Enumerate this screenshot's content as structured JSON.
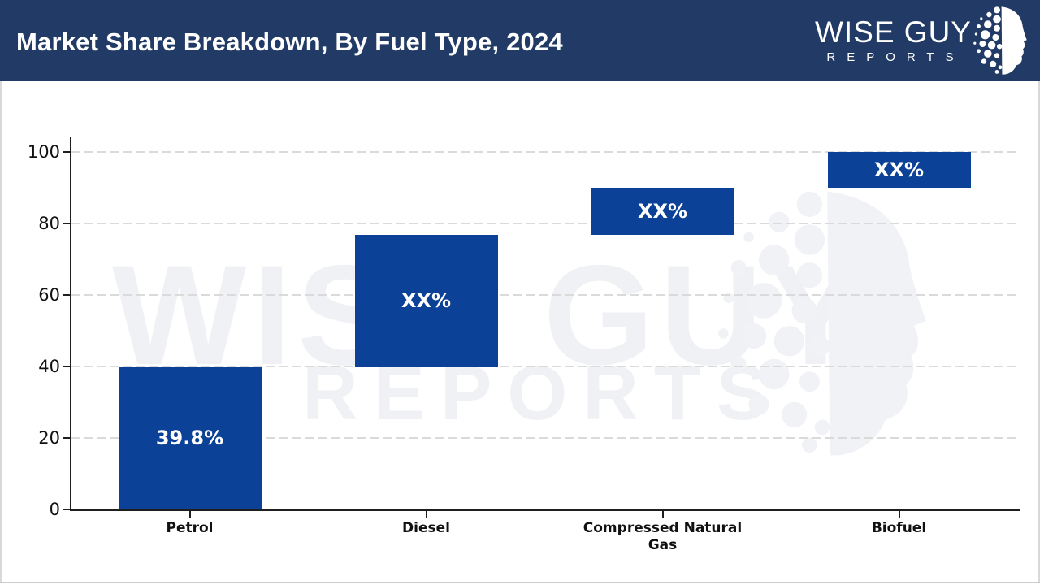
{
  "header": {
    "title": "Market Share Breakdown, By Fuel Type, 2024",
    "background_color": "#213a66",
    "logo": {
      "line1": "WISE GUY",
      "line2": "REPORTS"
    }
  },
  "watermark": {
    "line1": "WISE GUY",
    "line2": "REPORTS"
  },
  "chart_data": {
    "type": "bar",
    "subtype": "waterfall-stacked-segments",
    "title": "Market Share Breakdown, By Fuel Type, 2024",
    "categories": [
      "Petrol",
      "Diesel",
      "Compressed Natural Gas",
      "Biofuel"
    ],
    "segments": [
      {
        "label": "Petrol",
        "start": 0,
        "end": 39.8,
        "value_label": "39.8%"
      },
      {
        "label": "Diesel",
        "start": 39.8,
        "end": 76.8,
        "value_label": "XX%"
      },
      {
        "label": "Compressed Natural Gas",
        "start": 76.8,
        "end": 90,
        "value_label": "XX%"
      },
      {
        "label": "Biofuel",
        "start": 90,
        "end": 100,
        "value_label": "XX%"
      }
    ],
    "xlabel": "",
    "ylabel": "",
    "ylim": [
      0,
      100
    ],
    "yticks": [
      0,
      20,
      40,
      60,
      80,
      100
    ],
    "grid": "horizontal-dashed",
    "gridline_color": "#dadada",
    "bar_color": "#0b4196",
    "bar_label_color": "#ffffff",
    "axis_color": "#1f1f1f",
    "legend": "none"
  }
}
